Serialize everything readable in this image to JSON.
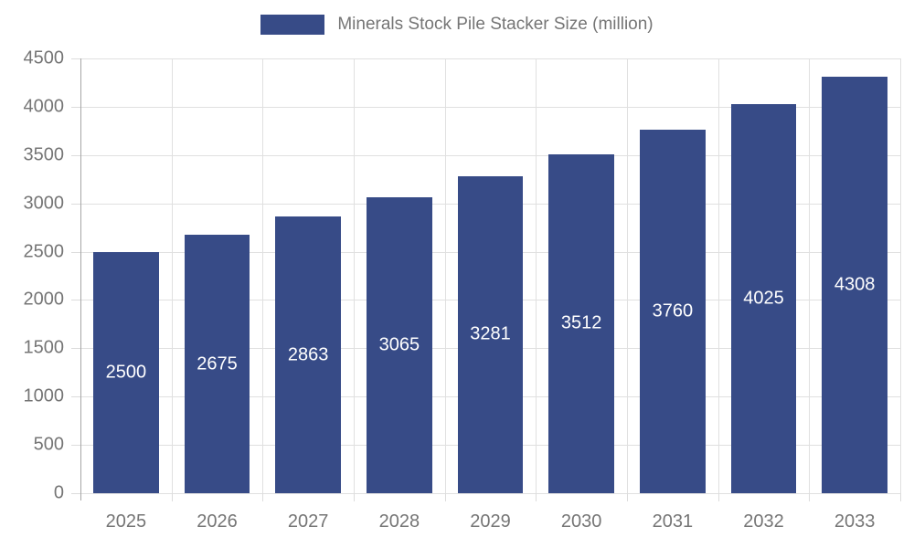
{
  "legend": {
    "label": "Minerals Stock Pile Stacker Size (million)"
  },
  "colors": {
    "bar": "#374B87",
    "grid": "#e0e0e0",
    "axis_line": "#a6a6a6",
    "tick_text": "#757575",
    "bar_label_text": "#ffffff"
  },
  "chart_data": {
    "type": "bar",
    "title": "Minerals Stock Pile Stacker Size (million)",
    "categories": [
      "2025",
      "2026",
      "2027",
      "2028",
      "2029",
      "2030",
      "2031",
      "2032",
      "2033"
    ],
    "values": [
      2500,
      2675,
      2863,
      3065,
      3281,
      3512,
      3760,
      4025,
      4308
    ],
    "xlabel": "",
    "ylabel": "",
    "ylim": [
      0,
      4500
    ],
    "ytick_step": 500,
    "yticks": [
      0,
      500,
      1000,
      1500,
      2000,
      2500,
      3000,
      3500,
      4000,
      4500
    ],
    "grid": true,
    "legend_position": "top",
    "bar_width_fraction": 0.72,
    "value_labels": "centered-inside-white"
  }
}
